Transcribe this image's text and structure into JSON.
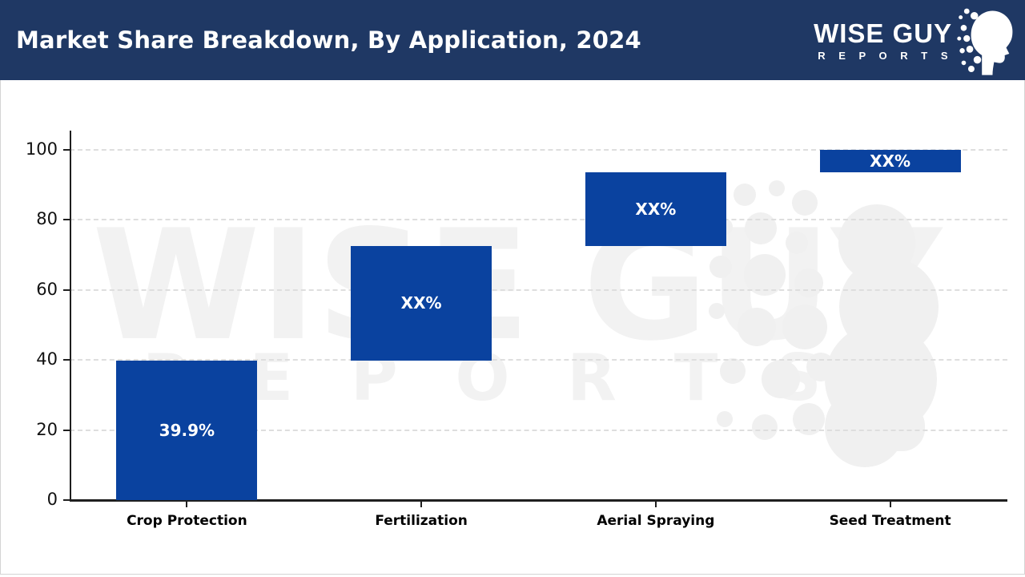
{
  "header": {
    "title": "Market Share Breakdown, By Application, 2024",
    "logo": {
      "brand_line1": "WISE GUY",
      "brand_line2": "R E P O R T S",
      "mark": "dotted-head-profile-icon"
    }
  },
  "watermark": {
    "line1": "WISE GUY",
    "line2": "R E P O R T S",
    "mark": "dotted-head-profile-watermark"
  },
  "colors": {
    "header_bg": "#1f3864",
    "bar_fill": "#0a429f",
    "bar_label_text": "#ffffff",
    "grid_line": "#dedede",
    "axis_line": "#1f1f1f",
    "tick_label_text": "#111111",
    "watermark_gray": "#f2f2f2",
    "page_border": "#d4d4d4"
  },
  "chart_data": {
    "type": "bar",
    "subtype": "waterfall-stacked-segments",
    "title": "Market Share Breakdown, By Application, 2024",
    "categories": [
      "Crop Protection",
      "Fertilization",
      "Aerial Spraying",
      "Seed Treatment"
    ],
    "segments": [
      {
        "category": "Crop Protection",
        "start": 0,
        "end": 39.9,
        "label": "39.9%"
      },
      {
        "category": "Fertilization",
        "start": 39.9,
        "end": 72.5,
        "label": "XX%"
      },
      {
        "category": "Aerial Spraying",
        "start": 72.5,
        "end": 93.5,
        "label": "XX%"
      },
      {
        "category": "Seed Treatment",
        "start": 93.5,
        "end": 100,
        "label": "XX%"
      }
    ],
    "yticks": [
      0,
      20,
      40,
      60,
      80,
      100
    ],
    "ylim": [
      0,
      106
    ],
    "xlabel": "",
    "ylabel": "",
    "grid": "horizontal-dashed",
    "legend": "none",
    "bar_color": "#0a429f"
  }
}
